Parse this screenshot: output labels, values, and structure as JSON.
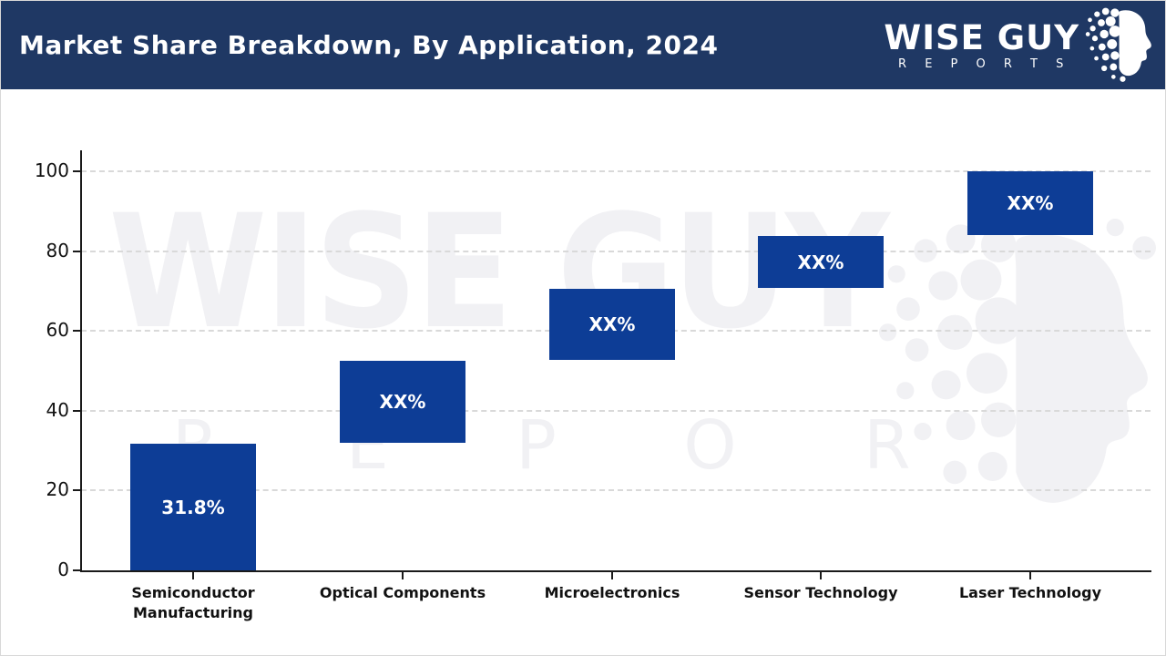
{
  "header": {
    "title": "Market Share Breakdown, By Application, 2024",
    "brand": {
      "name": "WISE GUY",
      "sub": "R E P O R T S"
    },
    "colors": {
      "background": "#1f3864",
      "text": "#ffffff"
    }
  },
  "watermark": {
    "line1": "WISE GUY",
    "line2": "R E P O R T S"
  },
  "chart_data": {
    "type": "bar",
    "subtype": "waterfall",
    "title": "Market Share Breakdown, By Application, 2024",
    "categories": [
      "Semiconductor Manufacturing",
      "Optical Components",
      "Microelectronics",
      "Sensor Technology",
      "Laser Technology"
    ],
    "bars": [
      {
        "category": "Semiconductor Manufacturing",
        "start": 0,
        "end": 31.8,
        "label": "31.8%"
      },
      {
        "category": "Optical Components",
        "start": 31.8,
        "end": 52.4,
        "label": "XX%"
      },
      {
        "category": "Microelectronics",
        "start": 52.6,
        "end": 70.5,
        "label": "XX%"
      },
      {
        "category": "Sensor Technology",
        "start": 70.8,
        "end": 83.8,
        "label": "XX%"
      },
      {
        "category": "Laser Technology",
        "start": 84.0,
        "end": 100.0,
        "label": "XX%"
      }
    ],
    "xlabel": "",
    "ylabel": "",
    "ylim": [
      0,
      100
    ],
    "yticks": [
      0,
      20,
      40,
      60,
      80,
      100
    ],
    "grid": "horizontal-dashed",
    "legend": "none",
    "colors": {
      "bar": "#0d3d96",
      "bar_label": "#ffffff",
      "axis": "#1a1a1a",
      "gridline": "#d9d9d9"
    }
  }
}
